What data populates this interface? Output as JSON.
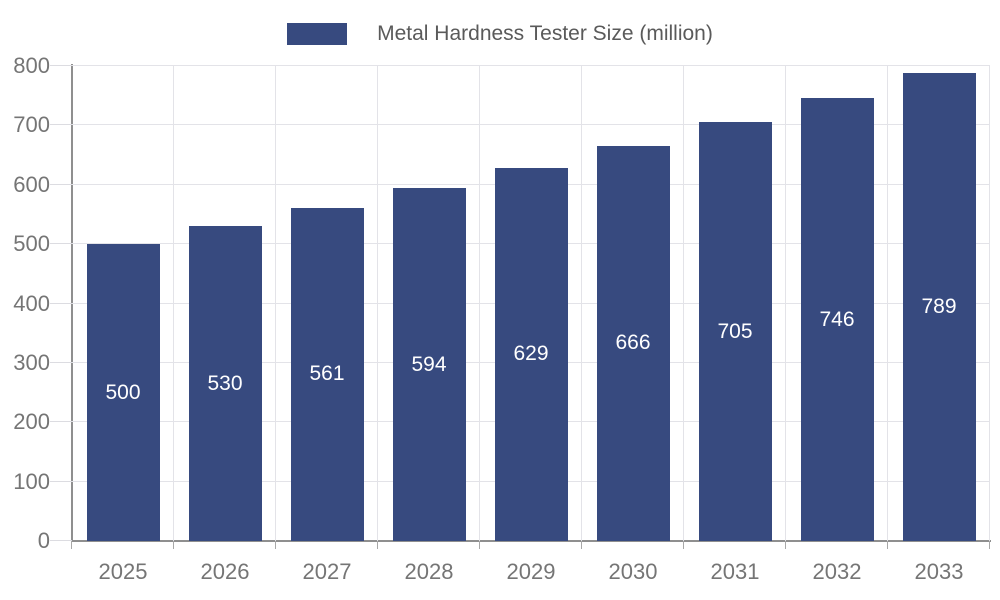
{
  "chart_data": {
    "type": "bar",
    "title": "",
    "categories": [
      "2025",
      "2026",
      "2027",
      "2028",
      "2029",
      "2030",
      "2031",
      "2032",
      "2033"
    ],
    "series": [
      {
        "name": "Metal Hardness Tester Size (million)",
        "values": [
          500,
          530,
          561,
          594,
          629,
          666,
          705,
          746,
          789
        ]
      }
    ],
    "legend": [
      "Metal Hardness Tester Size (million)"
    ],
    "legend_position": "top-center",
    "xlabel": "",
    "ylabel": "",
    "ylim": [
      0,
      800
    ],
    "ytick_step": 100,
    "yticks": [
      0,
      100,
      200,
      300,
      400,
      500,
      600,
      700,
      800
    ],
    "grid": true,
    "value_labels_position": "inside-center",
    "colors": {
      "bar": "#374a7f",
      "value_label": "#ffffff",
      "axis_line": "#8f8f8f",
      "grid_line": "#e3e3e8",
      "y_tick": "#dcdce1",
      "x_tick": "#a8a8a8",
      "tick_label": "#757575",
      "legend_text": "#5a5a5a",
      "background": "#ffffff"
    }
  }
}
